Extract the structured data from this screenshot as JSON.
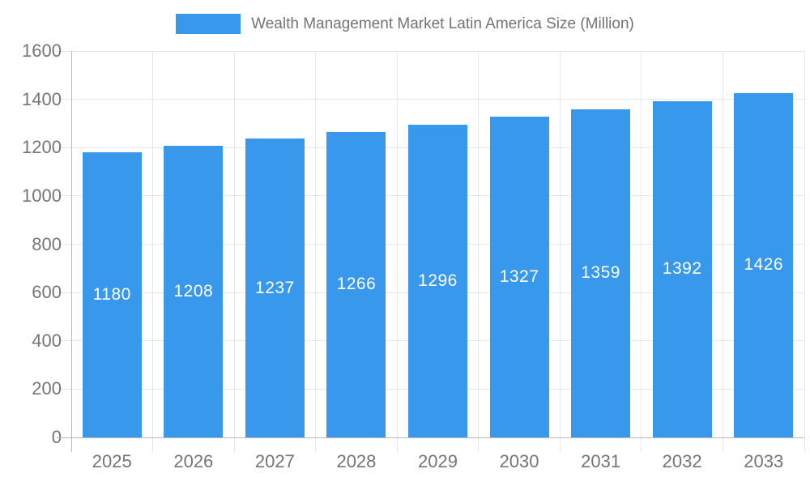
{
  "chart_data": {
    "type": "bar",
    "title": "Wealth Management Market Latin America Size (Million)",
    "categories": [
      "2025",
      "2026",
      "2027",
      "2028",
      "2029",
      "2030",
      "2031",
      "2032",
      "2033"
    ],
    "values": [
      1180,
      1208,
      1237,
      1266,
      1296,
      1327,
      1359,
      1392,
      1426
    ],
    "xlabel": "",
    "ylabel": "",
    "ylim": [
      0,
      1600
    ],
    "yticks": [
      0,
      200,
      400,
      600,
      800,
      1000,
      1200,
      1400,
      1600
    ],
    "grid": true,
    "legend_position": "top",
    "bar_labels_visible": true
  },
  "colors": {
    "bar": "#3898ec",
    "grid": "#e6e6e6",
    "axis": "#b4bac0",
    "tick_text": "#757575",
    "title_text": "#737373",
    "bar_label": "#ffffff",
    "background": "#ffffff"
  }
}
